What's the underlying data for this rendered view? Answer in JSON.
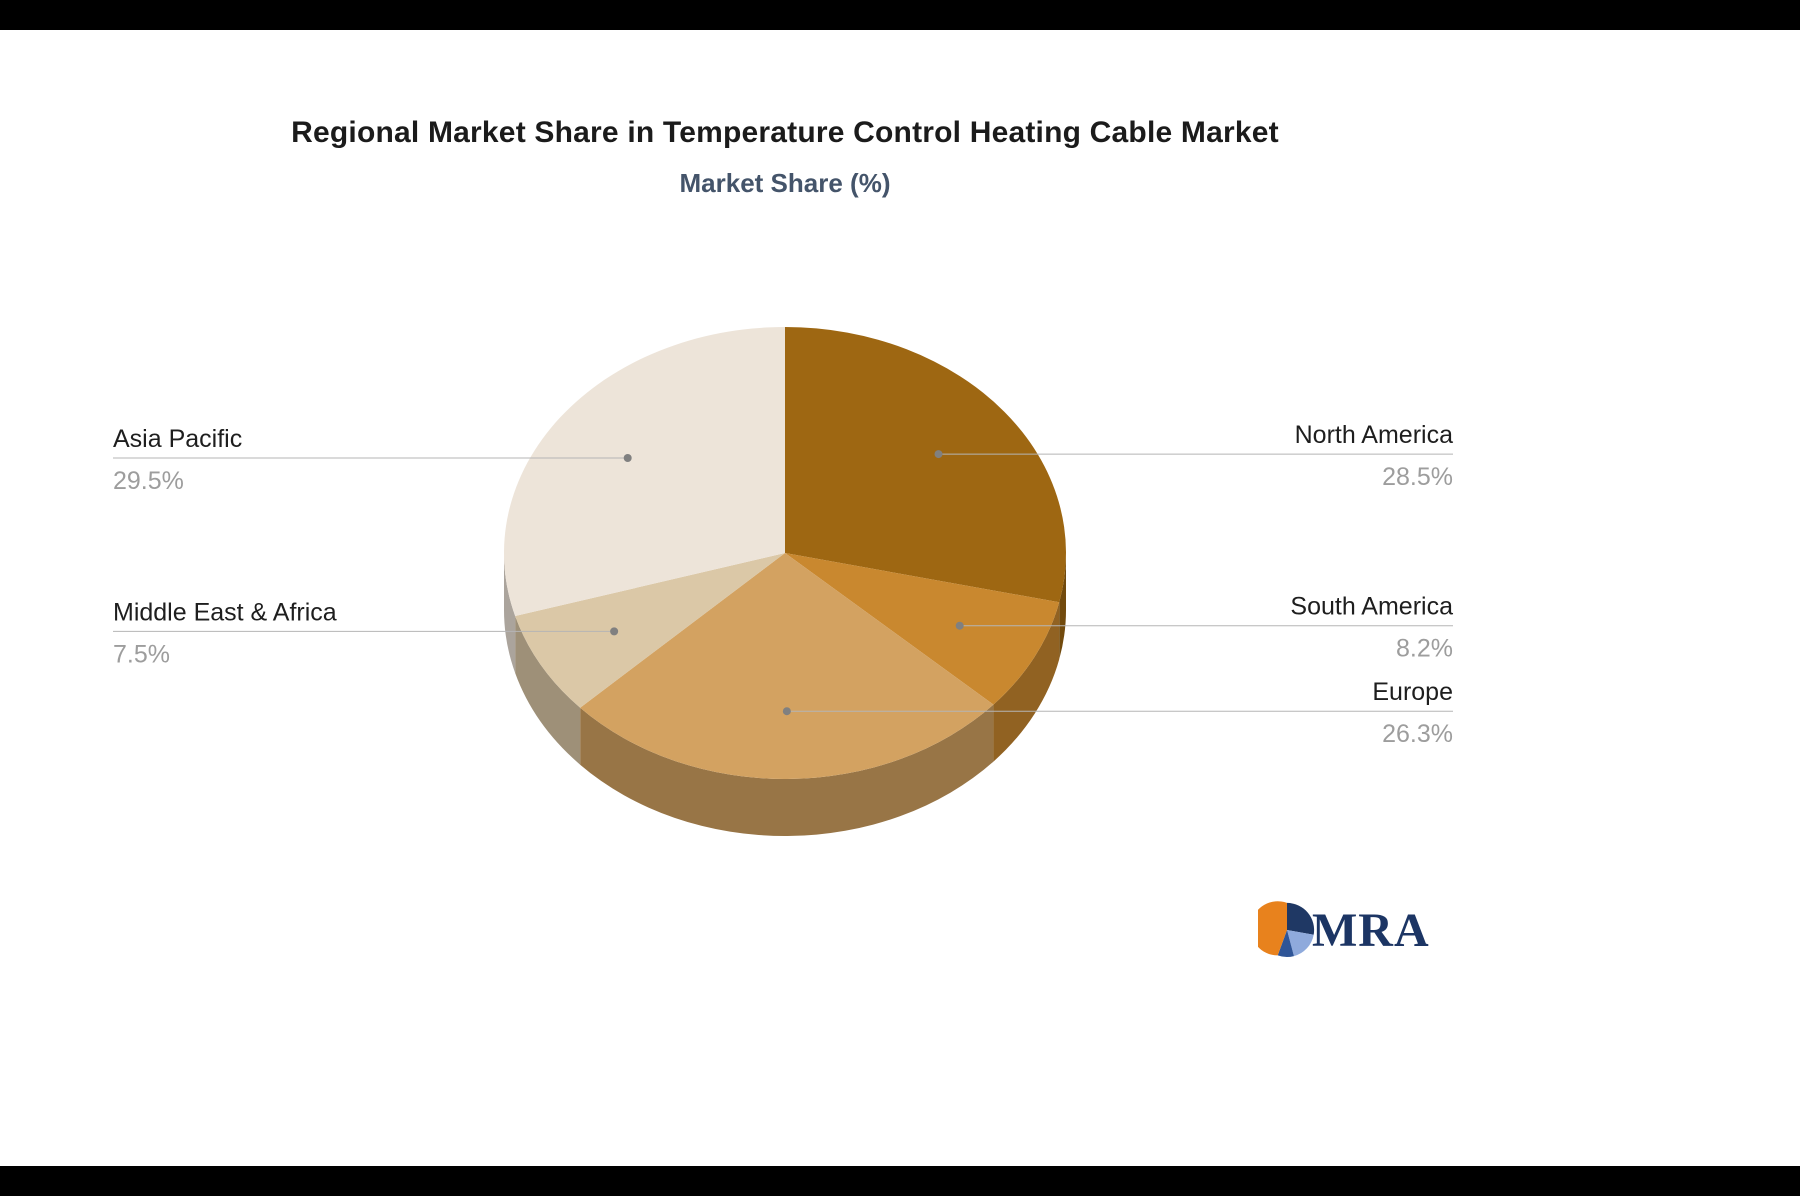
{
  "chart_data": {
    "type": "pie",
    "title": "Regional Market Share in Temperature Control Heating Cable Market",
    "subtitle": "Market Share (%)",
    "unit": "%",
    "style": "3d-pie",
    "legend_position": "outside-callout-labels",
    "start_angle_deg": -90,
    "direction": "clockwise",
    "segments": [
      {
        "label": "North America",
        "value": 28.5,
        "display": "28.5%",
        "color": "#9E6712"
      },
      {
        "label": "South America",
        "value": 8.2,
        "display": "8.2%",
        "color": "#C9882F"
      },
      {
        "label": "Europe",
        "value": 26.3,
        "display": "26.3%",
        "color": "#D3A261"
      },
      {
        "label": "Middle East & Africa",
        "value": 7.5,
        "display": "7.5%",
        "color": "#DBC8A7"
      },
      {
        "label": "Asia Pacific",
        "value": 29.5,
        "display": "29.5%",
        "color": "#EDE4D9"
      }
    ],
    "label_text_color": "#1e1e1e",
    "value_text_color": "#9d9d9d",
    "leader_line_color": "#b5b5b5"
  },
  "logo": {
    "text": "MRA"
  }
}
